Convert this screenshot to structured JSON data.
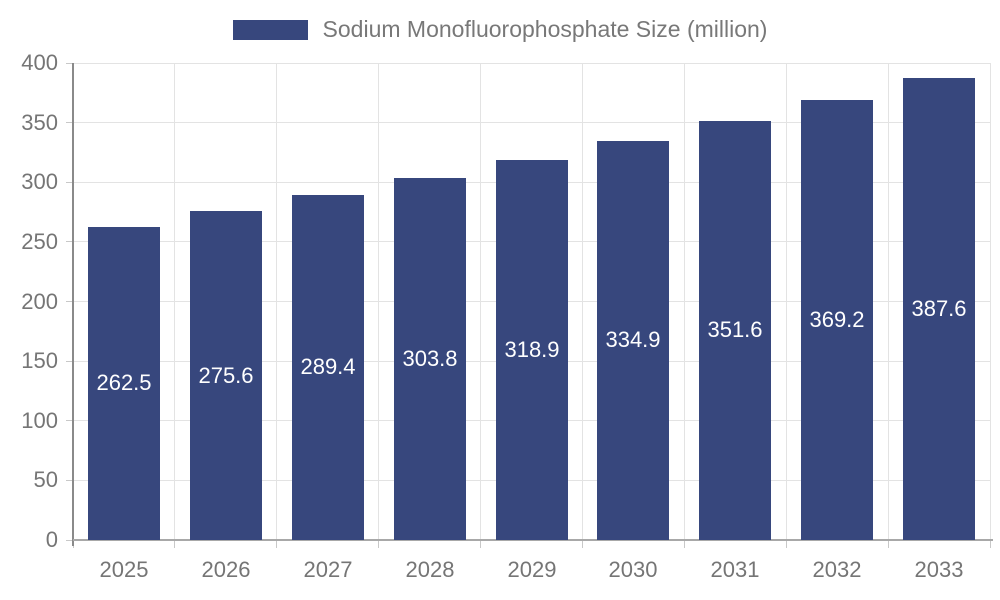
{
  "chart_data": {
    "type": "bar",
    "title": "Sodium Monofluorophosphate Size (million)",
    "categories": [
      "2025",
      "2026",
      "2027",
      "2028",
      "2029",
      "2030",
      "2031",
      "2032",
      "2033"
    ],
    "values": [
      262.5,
      275.6,
      289.4,
      303.8,
      318.9,
      334.9,
      351.6,
      369.2,
      387.6
    ],
    "xlabel": "",
    "ylabel": "",
    "ylim": [
      0,
      400
    ],
    "ytick_step": 50,
    "grid": true,
    "legend_position": "top-center",
    "value_label_position": "inside-center"
  },
  "legend": {
    "label": "Sodium Monofluorophosphate Size (million)"
  },
  "colors": {
    "bar": "#37477d",
    "value_label": "#ffffff",
    "axis_label": "#757575",
    "legend_text": "#787878",
    "gridline": "#e3e3e3",
    "y_axis_line": "#8a8a8a",
    "x_axis_line": "#a8a8a8",
    "tick": "#c8c8c8",
    "background": "#ffffff"
  }
}
